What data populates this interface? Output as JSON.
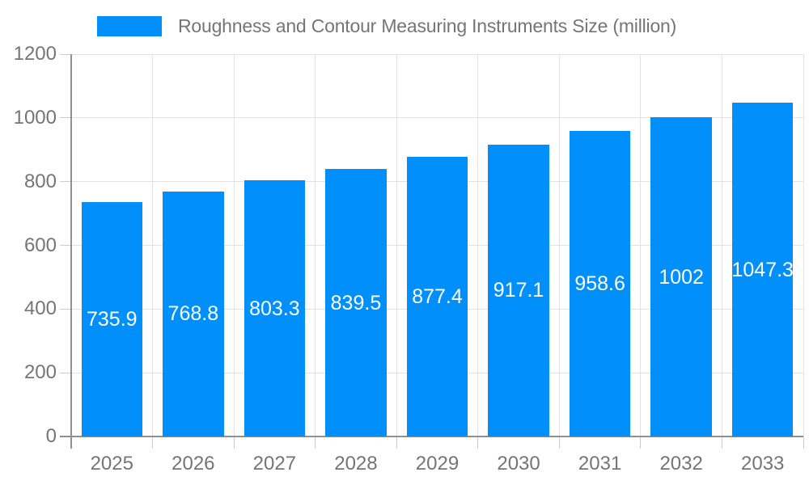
{
  "chart_data": {
    "type": "bar",
    "title": "Roughness and Contour Measuring Instruments Size (million)",
    "categories": [
      "2025",
      "2026",
      "2027",
      "2028",
      "2029",
      "2030",
      "2031",
      "2032",
      "2033"
    ],
    "values": [
      735.9,
      768.8,
      803.3,
      839.5,
      877.4,
      917.1,
      958.6,
      1002,
      1047.3
    ],
    "series_name": "Roughness and Contour Measuring Instruments Size (million)",
    "xlabel": "",
    "ylabel": "",
    "ylim": [
      0,
      1200
    ],
    "yticks": [
      0,
      200,
      400,
      600,
      800,
      1000,
      1200
    ],
    "grid": true,
    "legend_position": "top",
    "bar_color": "#0190FB",
    "value_label_color": "#ffffff",
    "axis_text_color": "#757575",
    "grid_color": "#e2e2e2",
    "tick_color": "#cccccc",
    "axis_line_color": "#909090",
    "background_color": "#ffffff"
  }
}
